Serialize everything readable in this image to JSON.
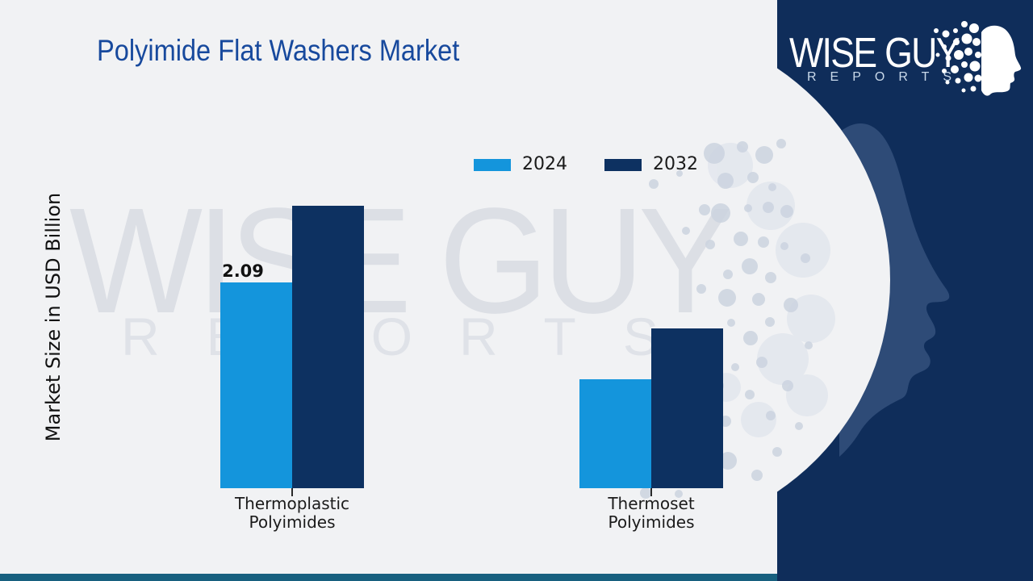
{
  "title": "Polyimide Flat Washers Market",
  "y_axis_label": "Market Size in USD Billion",
  "watermark": {
    "wordmark": "WISE GUY",
    "subline": "REPORTS"
  },
  "logo": {
    "wordmark": "WISE GUY",
    "subline": "REPORTS"
  },
  "legend": {
    "items": [
      {
        "label": "2024",
        "color": "#1495dc"
      },
      {
        "label": "2032",
        "color": "#0d3161"
      }
    ]
  },
  "colors": {
    "background": "#f1f2f4",
    "title_blue": "#17499d",
    "bar_2024": "#1495dc",
    "bar_2032": "#0d3161",
    "panel_navy": "#0f2d5a",
    "face_navy": "#2e4b77",
    "footer_teal": "#17607f",
    "watermark_gray": "#dcdfe5"
  },
  "chart_data": {
    "type": "bar",
    "categories": [
      "Thermoplastic Polyimides",
      "Thermoset Polyimides"
    ],
    "series": [
      {
        "name": "2024",
        "color": "#1495dc",
        "values": [
          2.09,
          1.11
        ]
      },
      {
        "name": "2032",
        "color": "#0d3161",
        "values": [
          2.87,
          1.62
        ]
      }
    ],
    "annotations": [
      {
        "series_index": 0,
        "category_index": 0,
        "text": "2.09"
      }
    ],
    "title": "Polyimide Flat Washers Market",
    "xlabel": "",
    "ylabel": "Market Size in USD Billion",
    "ylim": [
      0,
      3.1
    ],
    "grid": false,
    "legend_position": "top"
  }
}
